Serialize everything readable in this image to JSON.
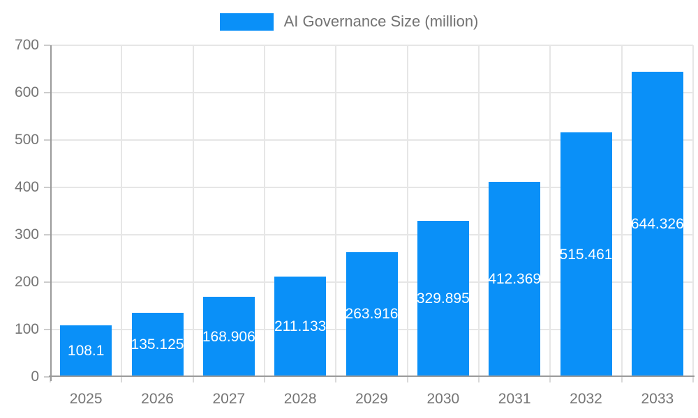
{
  "chart_data": {
    "type": "bar",
    "title": "AI Governance Size (million)",
    "categories": [
      "2025",
      "2026",
      "2027",
      "2028",
      "2029",
      "2030",
      "2031",
      "2032",
      "2033"
    ],
    "values": [
      108.1,
      135.125,
      168.906,
      211.133,
      263.916,
      329.895,
      412.369,
      515.461,
      644.326
    ],
    "xlabel": "",
    "ylabel": "",
    "ylim": [
      0,
      700
    ],
    "ytick_step": 100,
    "ytick_labels": [
      "0",
      "100",
      "200",
      "300",
      "400",
      "500",
      "600",
      "700"
    ],
    "grid": true,
    "legend_position": "top-center",
    "bar_value_labels_inside": true,
    "colors": {
      "bar": "#0a90f8",
      "grid": "#e6e6e6",
      "axis": "#9a9a9a",
      "tick_text": "#757575",
      "legend_text": "#737373",
      "bar_label_text": "#ffffff",
      "background": "#ffffff"
    }
  }
}
